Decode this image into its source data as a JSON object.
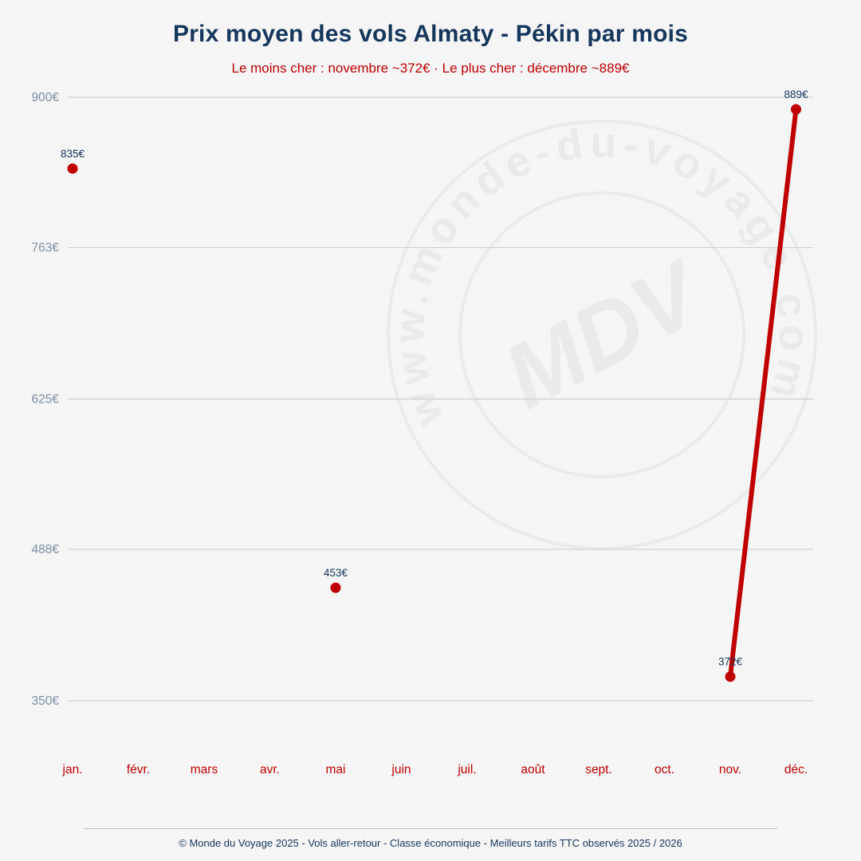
{
  "header": {
    "title": "Prix moyen des vols Almaty - Pékin par mois",
    "subtitle": "Le moins cher : novembre ~372€ · Le plus cher : décembre ~889€"
  },
  "chart_data": {
    "type": "line",
    "title": "Prix moyen des vols Almaty - Pékin par mois",
    "categories": [
      "jan.",
      "févr.",
      "mars",
      "avr.",
      "mai",
      "juin",
      "juil.",
      "août",
      "sept.",
      "oct.",
      "nov.",
      "déc."
    ],
    "values": [
      835,
      null,
      null,
      null,
      453,
      null,
      null,
      null,
      null,
      null,
      372,
      889
    ],
    "unit": "€",
    "ylim": [
      350,
      900
    ],
    "yticks": [
      350,
      488,
      625,
      763,
      900
    ],
    "grid": true,
    "legend": "none",
    "line_color": "#c00000",
    "point_color": "#c00000",
    "tick_label_color": "#7b8ea3",
    "month_label_color": "#c00000",
    "value_label_color": "#16365c",
    "grid_color": "#c7d0da"
  },
  "watermark": {
    "circle_text": "www.monde-du-voyage.com",
    "center_text": "MDV"
  },
  "footer": {
    "text": "© Monde du Voyage 2025 - Vols aller-retour - Classe économique - Meilleurs tarifs TTC observés 2025 / 2026"
  }
}
